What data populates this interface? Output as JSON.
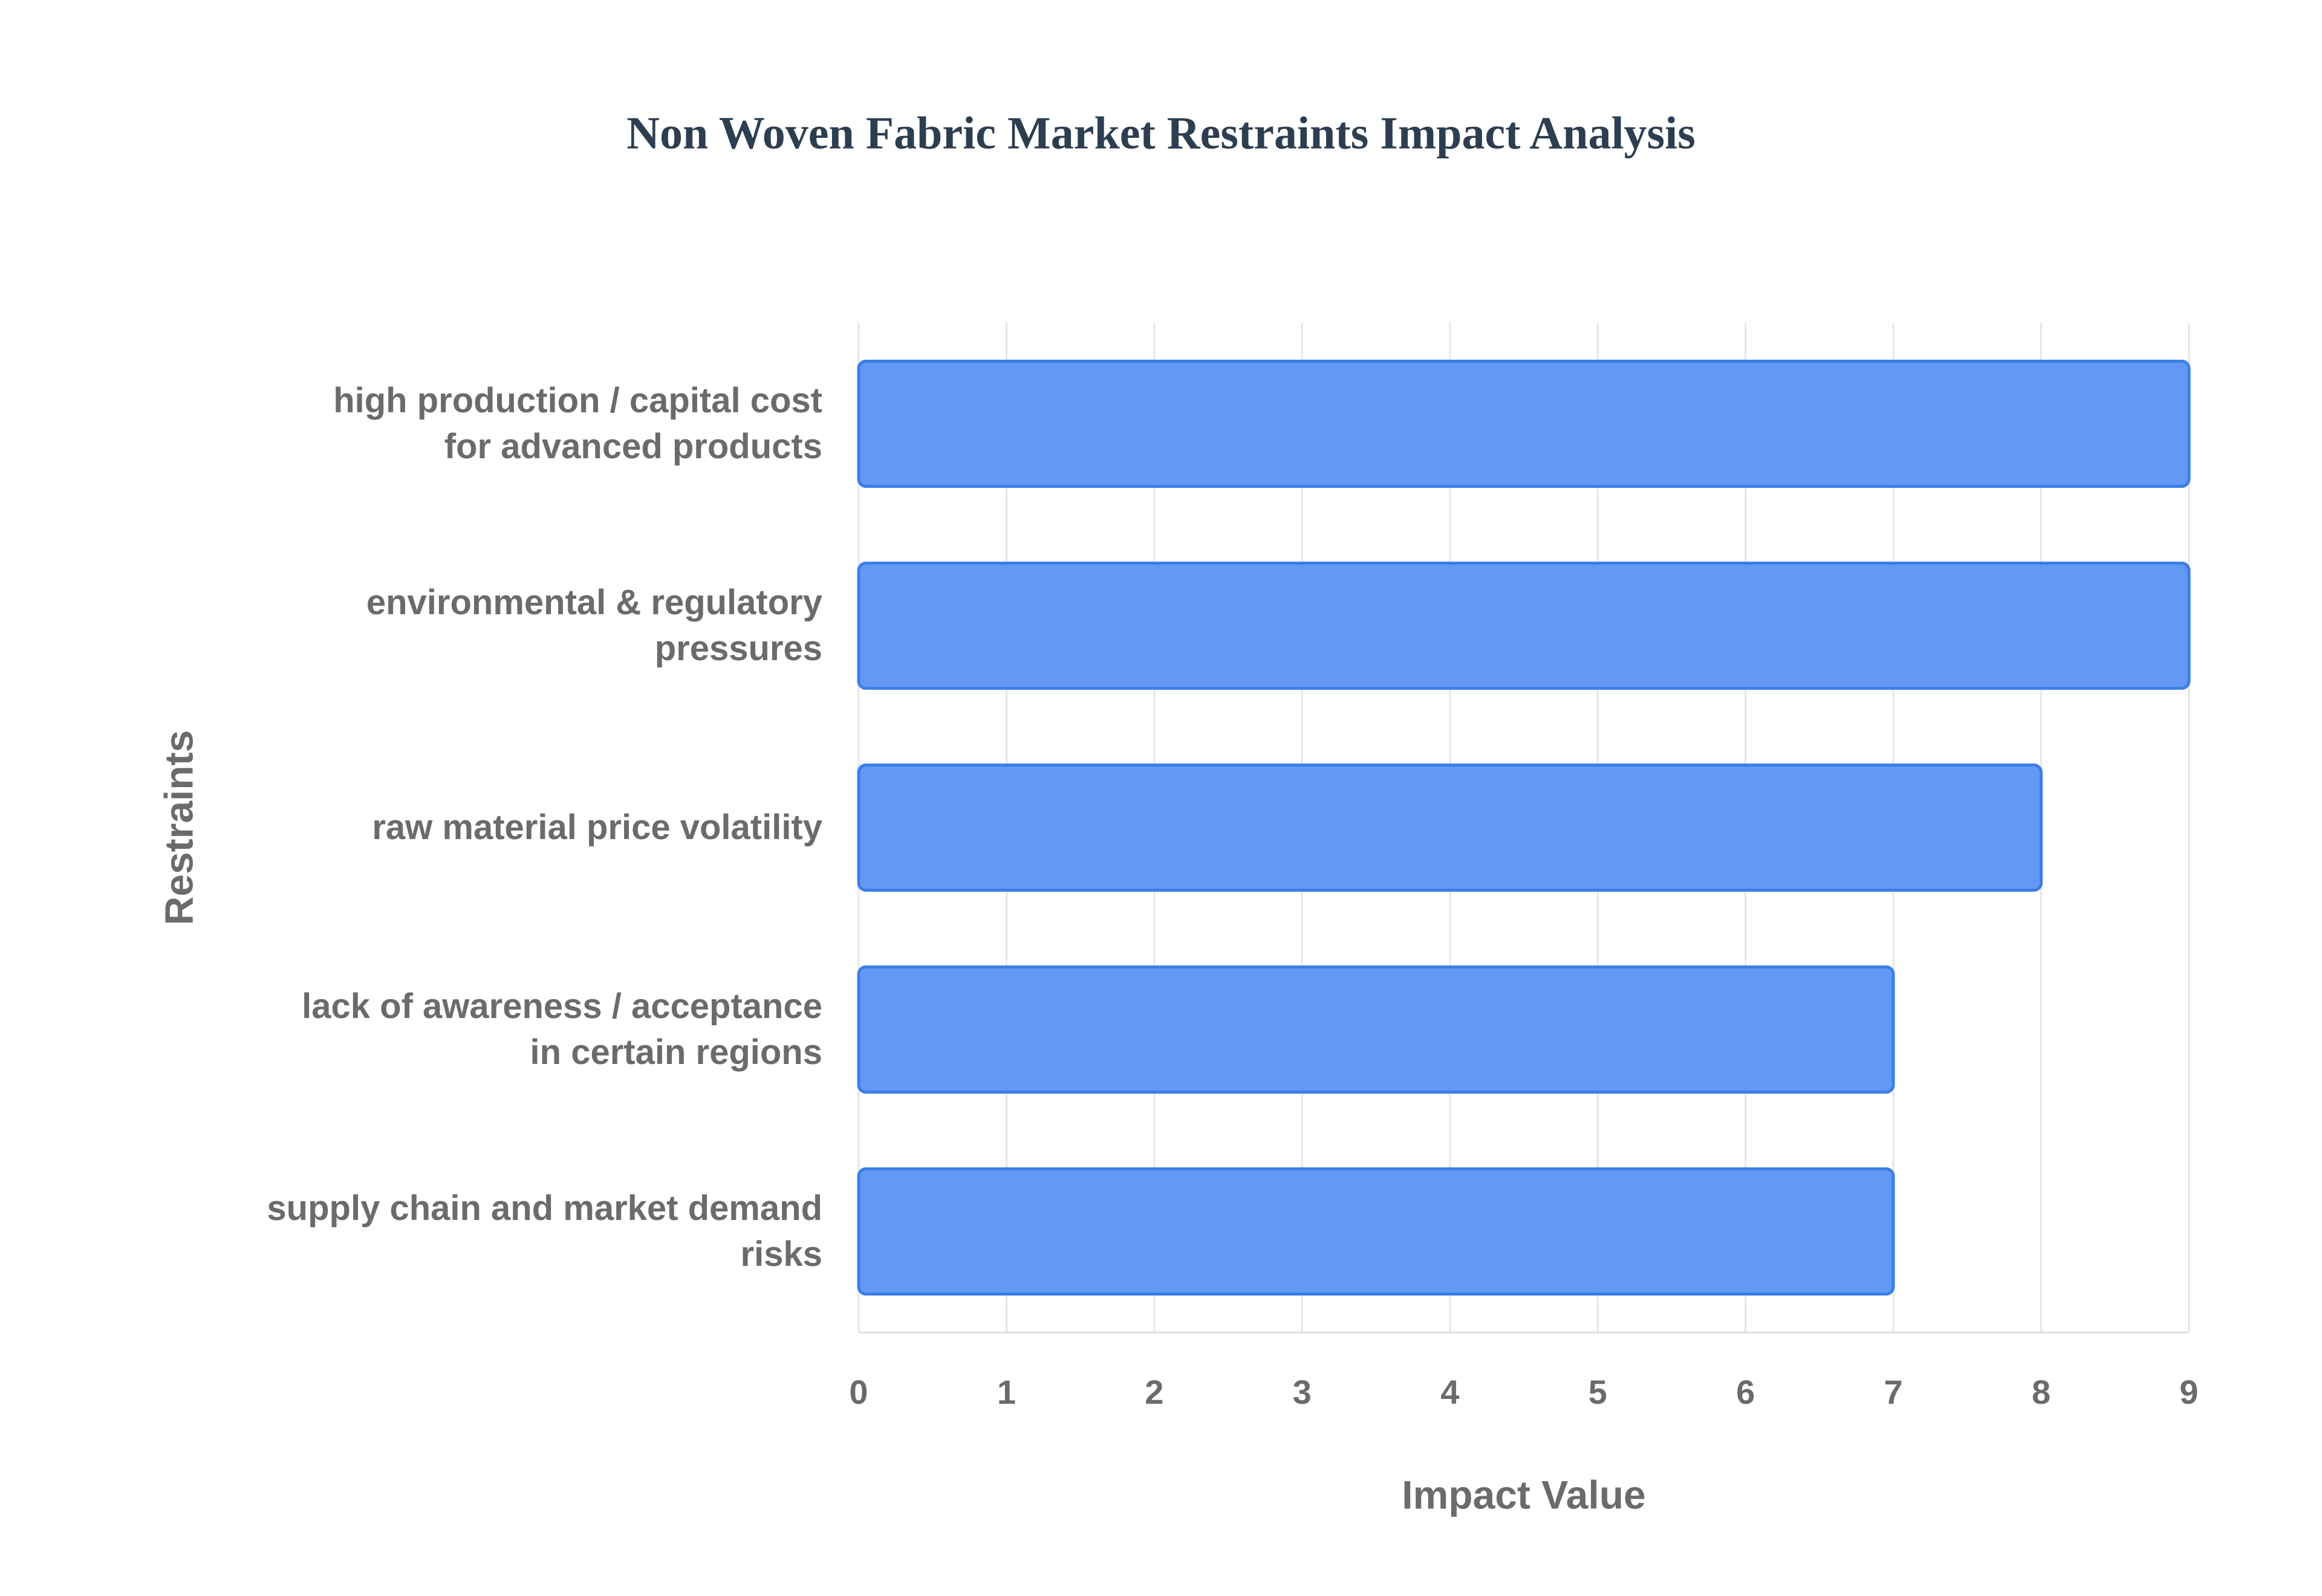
{
  "chart_data": {
    "type": "bar",
    "orientation": "horizontal",
    "title": "Non Woven Fabric Market Restraints Impact Analysis",
    "x_label": "Impact Value",
    "y_label": "Restraints",
    "categories": [
      "high production / capital cost\nfor advanced products",
      "environmental & regulatory\npressures",
      "raw material price volatility",
      "lack of awareness / acceptance\nin certain regions",
      "supply chain and market demand\nrisks"
    ],
    "values": [
      9,
      9,
      8,
      7,
      7
    ],
    "color": "#6399f4",
    "edge_color": "#3b7ee8",
    "xlim": [
      0,
      9
    ],
    "xticks": [
      0,
      1,
      2,
      3,
      4,
      5,
      6,
      7,
      8,
      9
    ],
    "grid": true
  }
}
